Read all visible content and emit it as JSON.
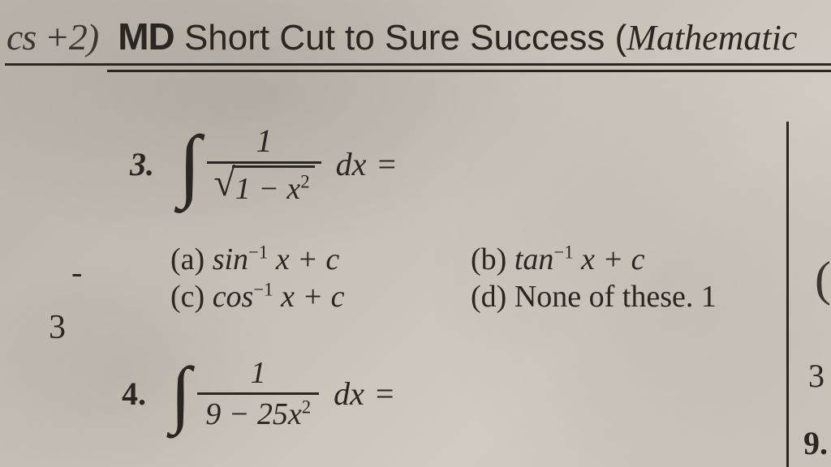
{
  "header": {
    "left_tag": "cs +2)",
    "brand": "MD",
    "title_rest": " Short Cut to Sure Success (",
    "title_ital": "Mathematic",
    "underline_color": "#2a2622",
    "font_title_size": 44
  },
  "question3": {
    "number": "3.",
    "integral": {
      "numerator": "1",
      "denominator_under_sqrt": "1 − x",
      "denominator_exponent": "2",
      "differential": "dx",
      "equals": "="
    },
    "options": [
      {
        "label": "(a)",
        "text_prefix": "sin",
        "sup": "−1",
        "text_suffix": " x + c"
      },
      {
        "label": "(b)",
        "text_prefix": "tan",
        "sup": "−1",
        "text_suffix": " x + c"
      },
      {
        "label": "(c)",
        "text_prefix": "cos",
        "sup": "−1",
        "text_suffix": " x + c"
      },
      {
        "label": "(d)",
        "text_plain": " None of these. 1"
      }
    ],
    "side_marker": "3",
    "left_dash": "-"
  },
  "question4": {
    "number": "4.",
    "integral": {
      "numerator": "1",
      "denominator": "9 − 25x",
      "denominator_exponent": "2",
      "differential": "dx",
      "equals": "="
    }
  },
  "right_margin": {
    "curve": "(",
    "three": "3",
    "nine": "9."
  },
  "colors": {
    "text": "#2a2622",
    "bg_light": "#d0cac0",
    "bg_dark": "#b8b2a8"
  }
}
